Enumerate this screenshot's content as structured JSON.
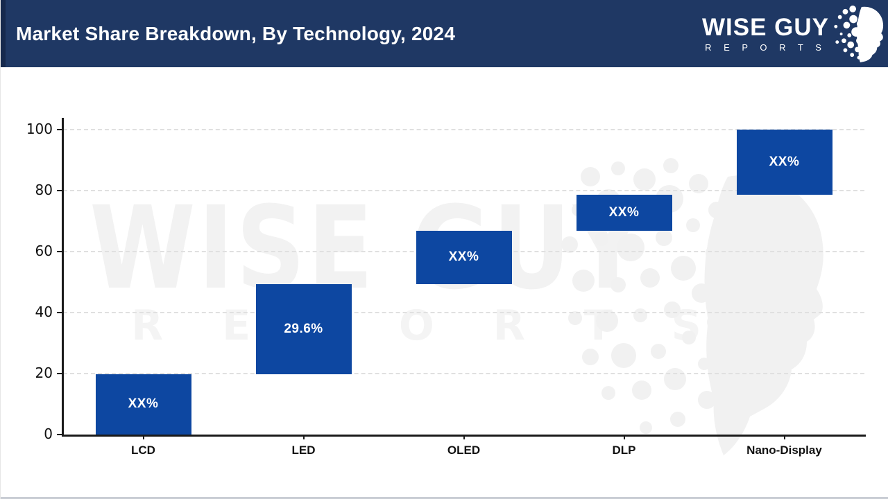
{
  "header": {
    "title": "Market Share Breakdown, By Technology, 2024",
    "bg_color": "#1f3864",
    "edge_color": "#16294d",
    "logo": {
      "line1": "WISE GUY",
      "line2": "R E P O R T S"
    }
  },
  "watermark": {
    "line1": "WISE GUY",
    "line2": "R E P O R T S"
  },
  "chart_data": {
    "type": "bar",
    "subtype": "waterfall",
    "title": "Market Share Breakdown, By Technology, 2024",
    "xlabel": "",
    "ylabel": "",
    "categories": [
      "LCD",
      "LED",
      "OLED",
      "DLP",
      "Nano-Display"
    ],
    "segments": [
      {
        "category": "LCD",
        "start": 0,
        "end": 19.8,
        "label": "XX%"
      },
      {
        "category": "LED",
        "start": 19.8,
        "end": 49.4,
        "label": "29.6%"
      },
      {
        "category": "OLED",
        "start": 49.4,
        "end": 66.8,
        "label": "XX%"
      },
      {
        "category": "DLP",
        "start": 66.8,
        "end": 78.6,
        "label": "XX%"
      },
      {
        "category": "Nano-Display",
        "start": 78.6,
        "end": 100,
        "label": "XX%"
      }
    ],
    "ylim": [
      0,
      104
    ],
    "yticks": [
      0,
      20,
      40,
      60,
      80,
      100
    ],
    "grid": "horizontal-dashed",
    "legend": "none",
    "bar_color": "#0d47a1",
    "bar_label_color": "#ffffff",
    "axis_color": "#1a1a1a",
    "gridline_color": "#e0e0e0"
  }
}
